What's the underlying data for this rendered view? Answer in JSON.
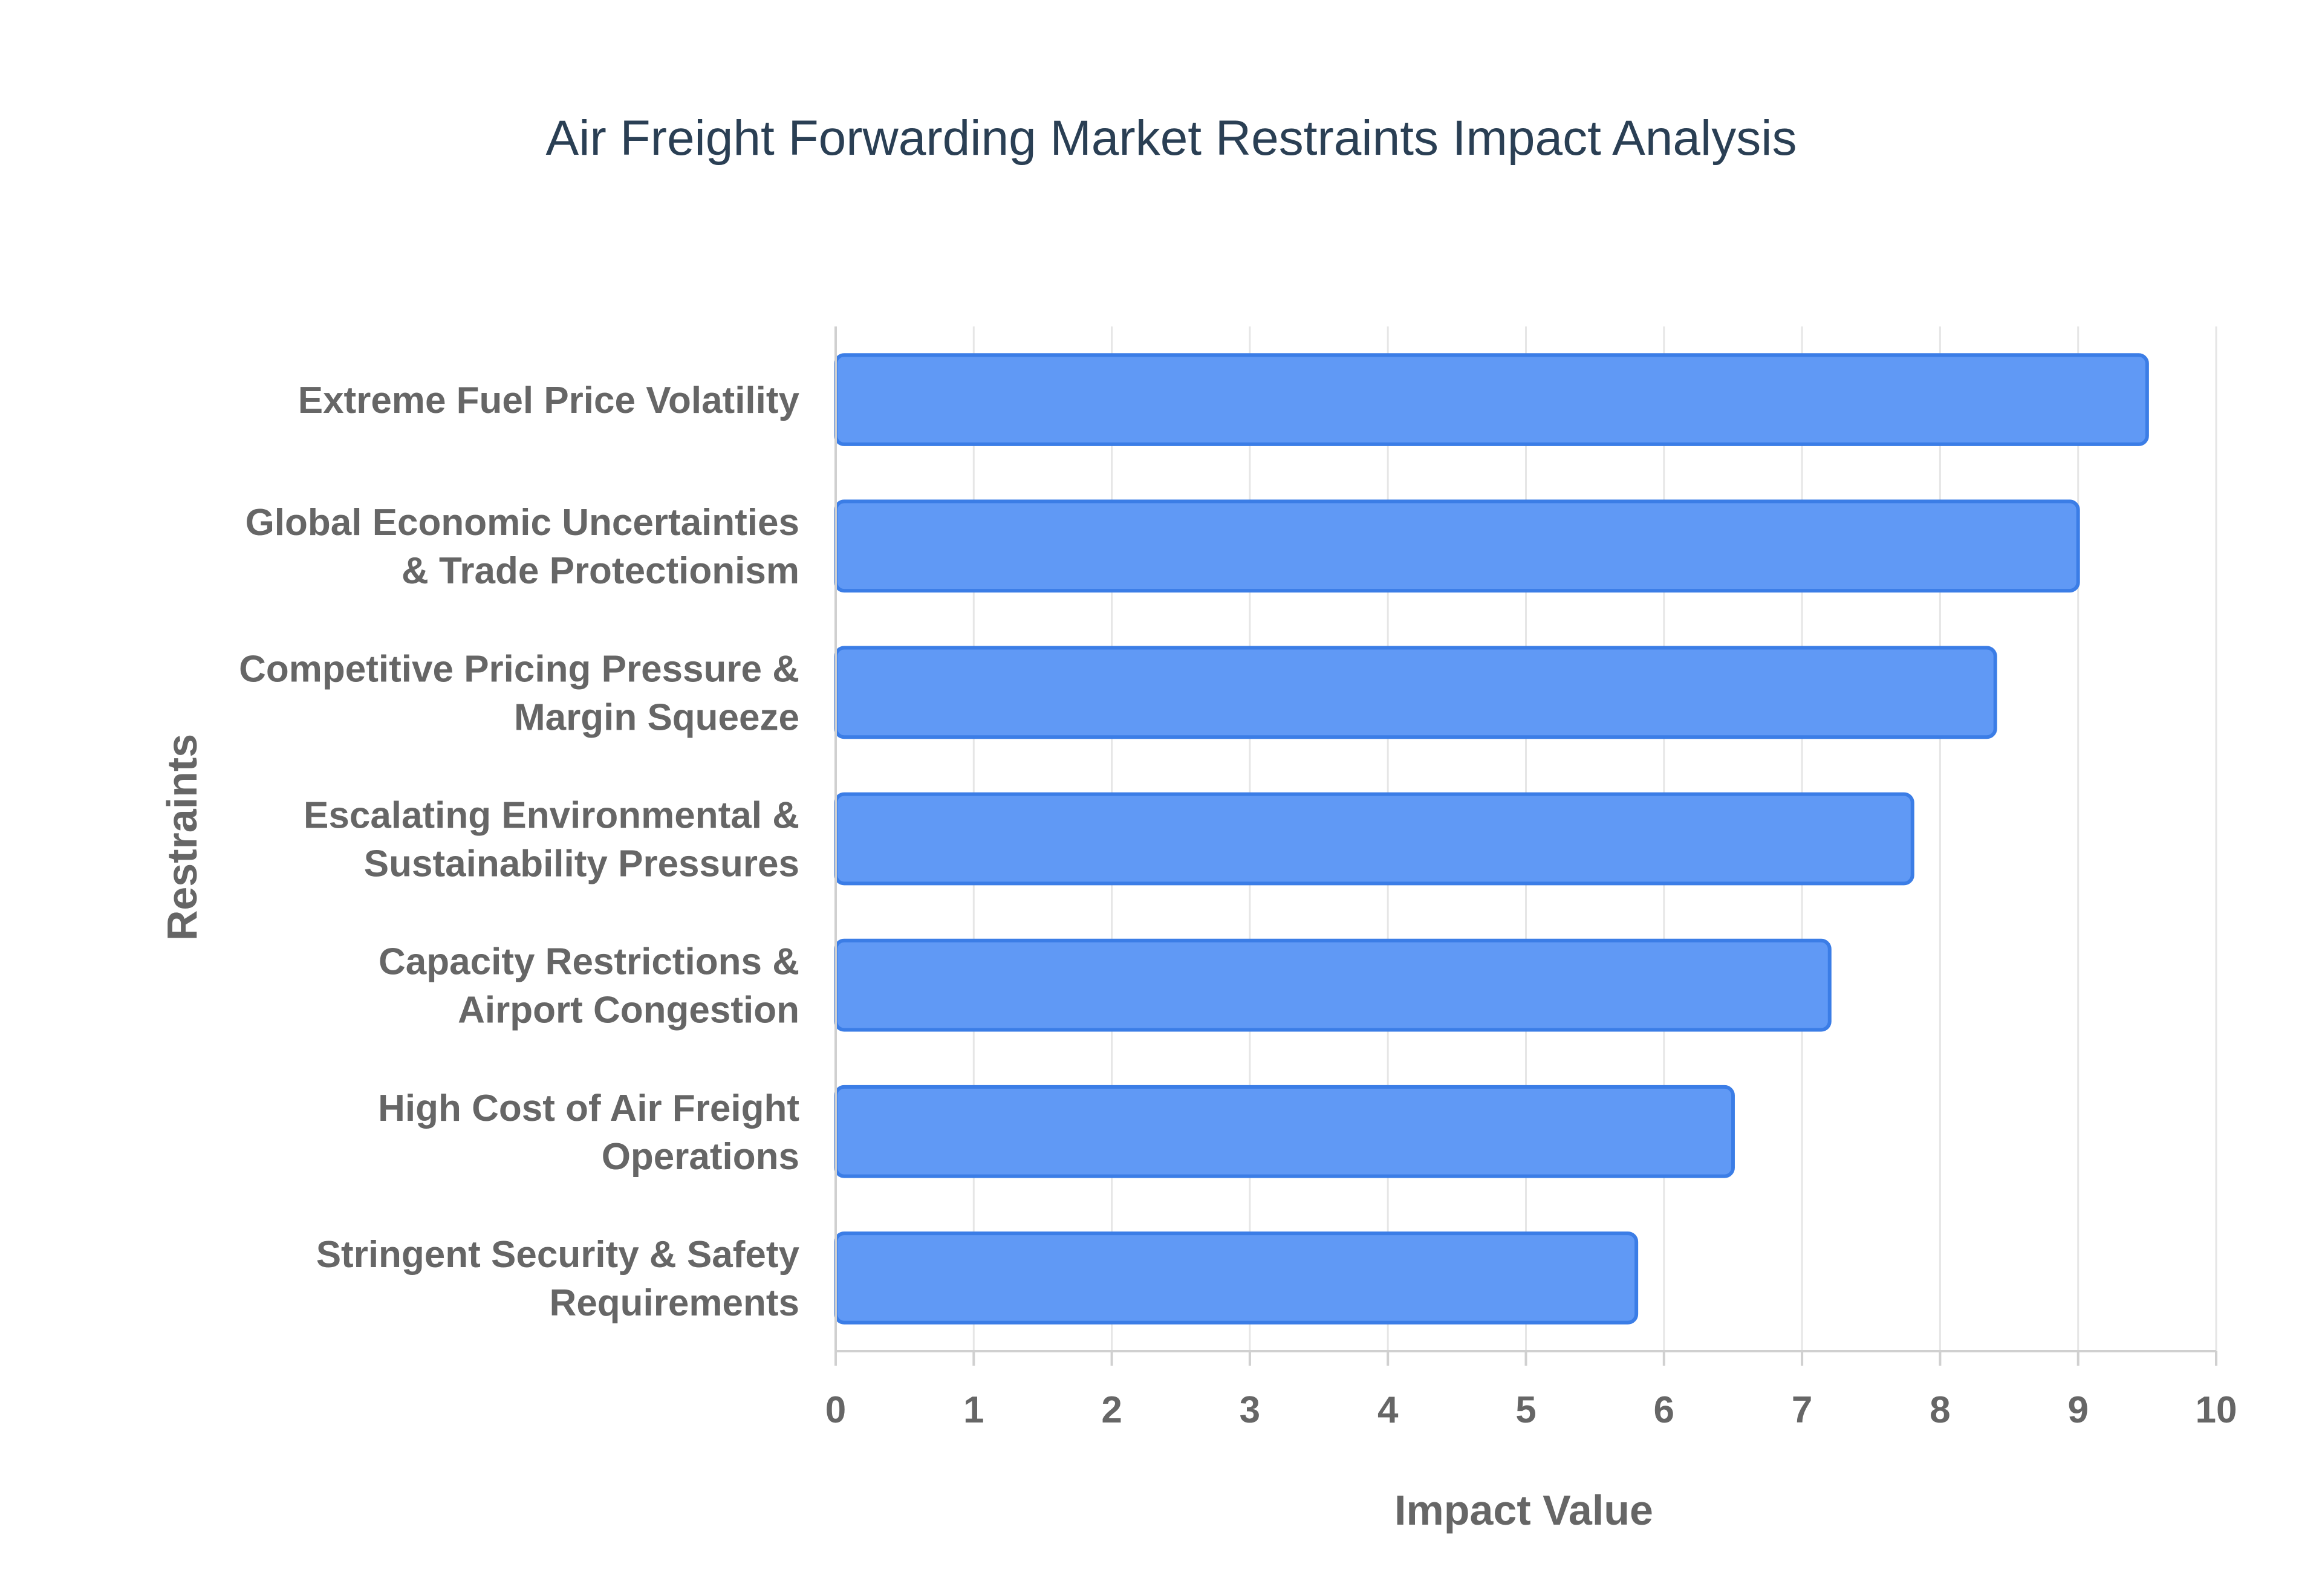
{
  "chart_data": {
    "type": "bar",
    "orientation": "horizontal",
    "title": "Air Freight Forwarding Market Restraints Impact Analysis",
    "xlabel": "Impact Value",
    "ylabel": "Restraints",
    "xlim": [
      0,
      10
    ],
    "xticks": [
      "0",
      "1",
      "2",
      "3",
      "4",
      "5",
      "6",
      "7",
      "8",
      "9",
      "10"
    ],
    "grid": true,
    "categories": [
      [
        "Extreme Fuel Price Volatility"
      ],
      [
        "Global Economic Uncertainties",
        "& Trade Protectionism"
      ],
      [
        "Competitive Pricing Pressure &",
        "Margin Squeeze"
      ],
      [
        "Escalating Environmental &",
        "Sustainability Pressures"
      ],
      [
        "Capacity Restrictions &",
        "Airport Congestion"
      ],
      [
        "High Cost of Air Freight",
        "Operations"
      ],
      [
        "Stringent Security & Safety",
        "Requirements"
      ]
    ],
    "values": [
      9.5,
      9.0,
      8.4,
      7.8,
      7.2,
      6.5,
      5.8
    ],
    "bar_color": "#6099f5",
    "bar_edge_color": "#3b7de6"
  }
}
